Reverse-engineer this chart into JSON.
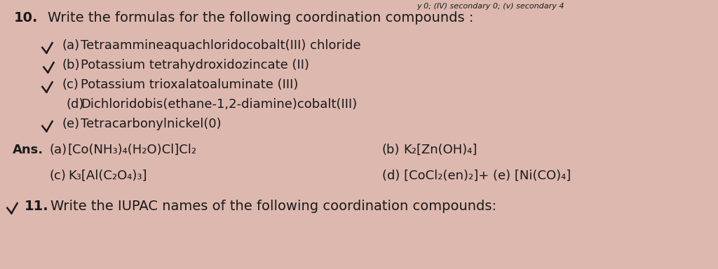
{
  "background_color": "#ddb8af",
  "title_number": "10.",
  "title_text": "Write the formulas for the following coordination compounds :",
  "items": [
    {
      "label": "(a)",
      "text": "Tetraammineaquachloridocobalt(III) chloride",
      "check": true
    },
    {
      "label": "(b)",
      "text": "Potassium tetrahydroxidozincate (II)",
      "check": true
    },
    {
      "label": "(c)",
      "text": "Potassium trioxalatoaluminate (III)",
      "check": true
    },
    {
      "label": "(d)",
      "text": "Dichloridobis(ethane-1,2-diamine)cobalt(III)",
      "check": false
    },
    {
      "label": "(e)",
      "text": "Tetracarbonylnickel(0)",
      "check": true
    }
  ],
  "ans_label": "Ans.",
  "ans_a_prefix": "(a)",
  "ans_a_formula": "[Co(NH₃)₄(H₂O)Cl]Cl₂",
  "ans_b_prefix": "(b)",
  "ans_b_formula": "K₂[Zn(OH)₄]",
  "ans_c_prefix": "(c)",
  "ans_c_formula": "K₃[Al(C₂O₄)₃]",
  "ans_d_formula": "(d) [CoCl₂(en)₂]+ (e) [Ni(CO)₄]",
  "footer_number": "11.",
  "footer_text": "Write the IUPAC names of the following coordination compounds:",
  "font_color": "#1a1a1a",
  "font_size_title": 14,
  "font_size_body": 13,
  "top_partial": "y 0; (IV) secondary 0; (v) secondary 4"
}
